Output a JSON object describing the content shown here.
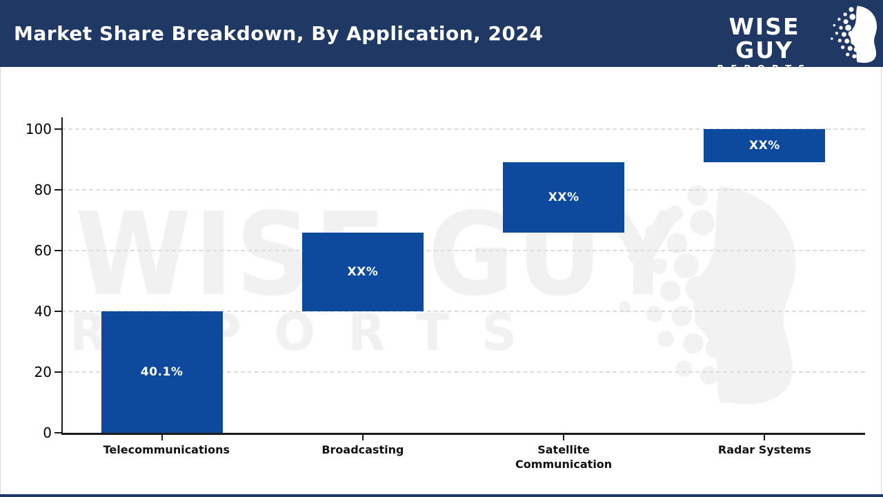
{
  "header": {
    "title": "Market Share Breakdown, By Application, 2024",
    "logo": {
      "line1": "WISE GUY",
      "line2": "REPORTS"
    }
  },
  "watermark": {
    "line1": "WISE GUY",
    "line2": "REPORTS"
  },
  "colors": {
    "header_bg": "#1f3864",
    "bar_fill": "#0d4a9e",
    "bar_label_text": "#ffffff",
    "gridline": "#dcdcdc",
    "axis": "#1a1a1a",
    "watermark": "#f1f1f2",
    "panel_border": "#d9d9d9"
  },
  "chart_data": {
    "type": "bar",
    "subtype": "waterfall-floating-bars",
    "title": "Market Share Breakdown, By Application, 2024",
    "xlabel": "",
    "ylabel": "",
    "categories": [
      "Telecommunications",
      "Broadcasting",
      "Satellite Communication",
      "Radar Systems"
    ],
    "bars": [
      {
        "category": "Telecommunications",
        "start": 0,
        "end": 40.1,
        "label": "40.1%"
      },
      {
        "category": "Broadcasting",
        "start": 40.1,
        "end": 66,
        "label": "XX%"
      },
      {
        "category": "Satellite Communication",
        "start": 66,
        "end": 89,
        "label": "XX%"
      },
      {
        "category": "Radar Systems",
        "start": 89,
        "end": 100,
        "label": "XX%"
      }
    ],
    "yticks": [
      0,
      20,
      40,
      60,
      80,
      100
    ],
    "ylim": [
      0,
      104
    ],
    "grid": "horizontal-dashed",
    "legend": "none"
  }
}
